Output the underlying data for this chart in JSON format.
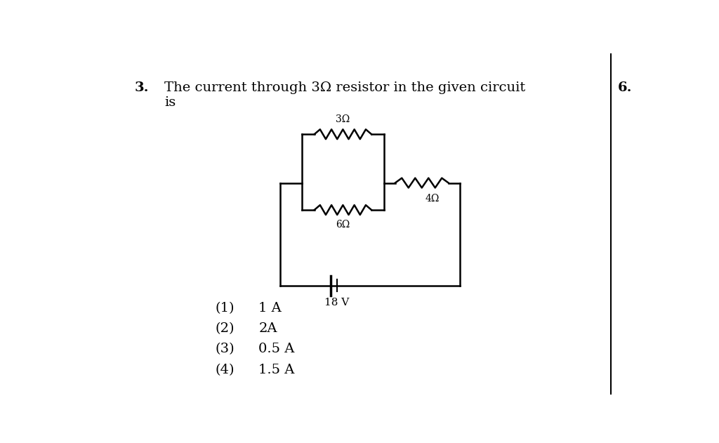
{
  "background_color": "#ffffff",
  "question_number": "3.",
  "question_text": "The current through 3Ω resistor in the given circuit",
  "question_text2": "is",
  "side_number": "6.",
  "options": [
    [
      "(1)",
      "1 A"
    ],
    [
      "(2)",
      "2A"
    ],
    [
      "(3)",
      "0.5 A"
    ],
    [
      "(4)",
      "1.5 A"
    ]
  ],
  "circuit": {
    "resistor_3_label": "3Ω",
    "resistor_6_label": "6Ω",
    "resistor_4_label": "4Ω",
    "battery_label": "18 V"
  },
  "font_size_question": 14,
  "font_size_options": 14,
  "font_size_circuit_labels": 10,
  "line_color": "#000000",
  "text_color": "#000000"
}
